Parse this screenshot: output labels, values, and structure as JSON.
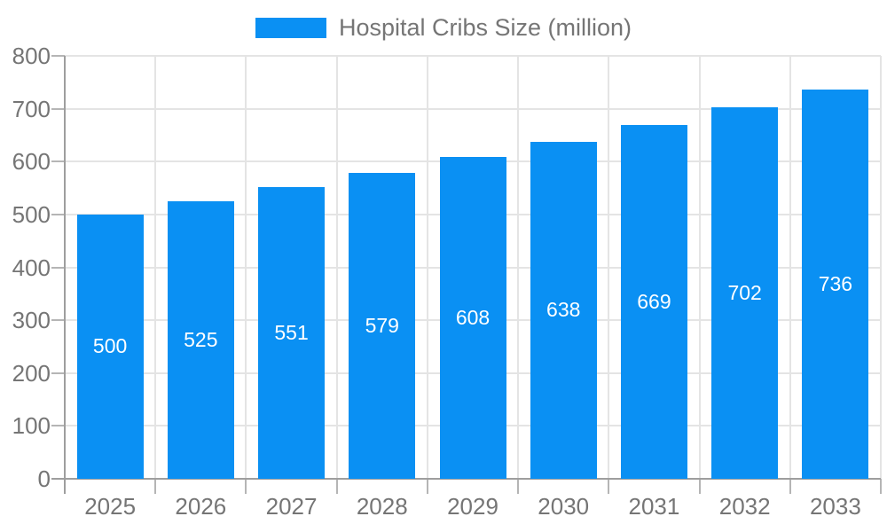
{
  "chart_data": {
    "type": "bar",
    "title": "Hospital Cribs Size (million)",
    "categories": [
      "2025",
      "2026",
      "2027",
      "2028",
      "2029",
      "2030",
      "2031",
      "2032",
      "2033"
    ],
    "values": [
      500,
      525,
      551,
      579,
      608,
      638,
      669,
      702,
      736
    ],
    "xlabel": "",
    "ylabel": "",
    "ylim": [
      0,
      800
    ],
    "ytick_step": 100,
    "yticks": [
      0,
      100,
      200,
      300,
      400,
      500,
      600,
      700,
      800
    ],
    "grid": true,
    "legend_position": "top-center",
    "colors": {
      "bar": "#0a90f3",
      "bar_label": "#ffffff",
      "axis_text": "#757575",
      "legend_text": "#757575",
      "axis_line": "#9e9e9e",
      "tick": "#b5b5b5",
      "gridline": "#e4e4e4"
    }
  }
}
